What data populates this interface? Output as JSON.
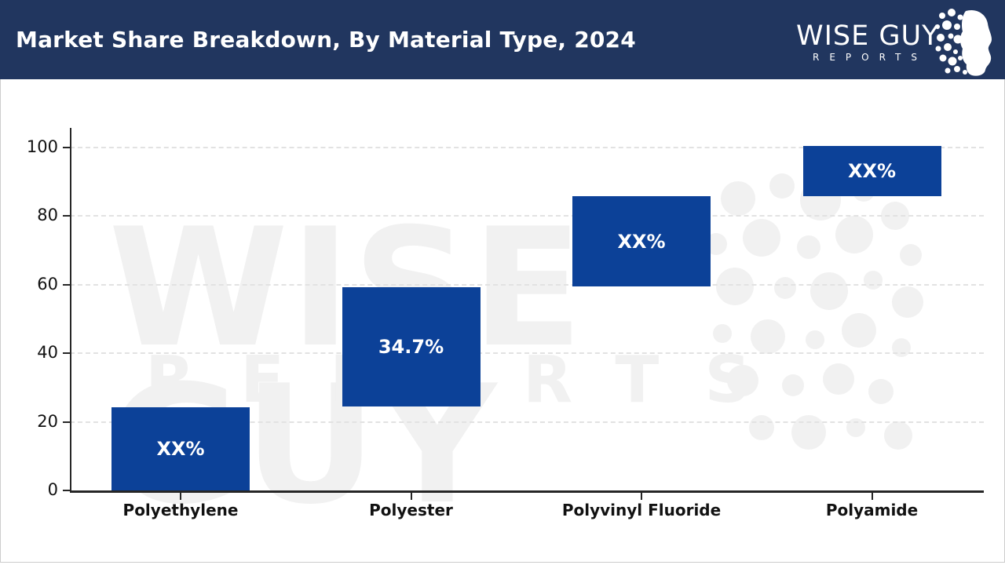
{
  "header": {
    "title": "Market Share Breakdown, By Material Type, 2024",
    "logo": {
      "line1": "WISE GUY",
      "line2": "REPORTS",
      "head_icon": "dotted-head-profile"
    },
    "bg_color": "#21365f"
  },
  "watermark": {
    "line1": "WISE GUY",
    "line2": "REPORTS",
    "head_icon": "dotted-head-profile"
  },
  "chart_data": {
    "type": "bar",
    "subtype": "floating-segment-waterfall",
    "title": "Market Share Breakdown, By Material Type, 2024",
    "categories": [
      "Polyethylene",
      "Polyester",
      "Polyvinyl Fluoride",
      "Polyamide"
    ],
    "series": [
      {
        "name": "Market Share (%)",
        "segments": [
          {
            "category": "Polyethylene",
            "from": 0,
            "to": 24.3,
            "label": "XX%"
          },
          {
            "category": "Polyester",
            "from": 24.5,
            "to": 59.2,
            "label": "34.7%"
          },
          {
            "category": "Polyvinyl Fluoride",
            "from": 59.4,
            "to": 85.7,
            "label": "XX%"
          },
          {
            "category": "Polyamide",
            "from": 85.7,
            "to": 100.3,
            "label": "XX%"
          }
        ]
      }
    ],
    "xlabel": "",
    "ylabel": "",
    "ylim": [
      0,
      105
    ],
    "yticks": [
      0,
      20,
      40,
      60,
      80,
      100
    ],
    "grid": "horizontal-dashed",
    "legend": "none",
    "bar_color": "#0c4198",
    "bar_label_color": "#ffffff",
    "axis_color": "#262626",
    "gridline_color": "#e2e2e2",
    "tick_label_color": "#111111"
  }
}
